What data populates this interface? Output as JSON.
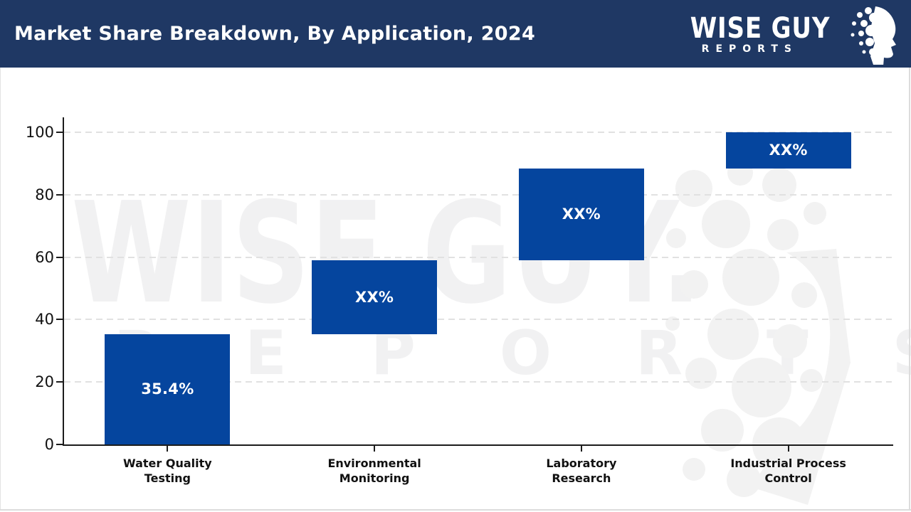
{
  "header": {
    "title": "Market Share Breakdown, By Application, 2024",
    "logo": {
      "line1": "WISE GUY",
      "line2": "REPORTS"
    }
  },
  "watermark": {
    "line1": "WISE GUY.",
    "line2": "R E P O R T S"
  },
  "chart_data": {
    "type": "bar",
    "subtype": "waterfall",
    "title": "Market Share Breakdown, By Application, 2024",
    "categories": [
      "Water Quality\nTesting",
      "Environmental\nMonitoring",
      "Laboratory\nResearch",
      "Industrial Process\nControl"
    ],
    "series": [
      {
        "name": "Market Share",
        "segments": [
          {
            "category": "Water Quality Testing",
            "start": 0,
            "end": 35.4
          },
          {
            "category": "Environmental Monitoring",
            "start": 35.4,
            "end": 59.0
          },
          {
            "category": "Laboratory Research",
            "start": 59.0,
            "end": 88.5
          },
          {
            "category": "Industrial Process Control",
            "start": 88.5,
            "end": 100.0
          }
        ]
      }
    ],
    "bar_labels": [
      "35.4%",
      "XX%",
      "XX%",
      "XX%"
    ],
    "yticks": [
      0,
      20,
      40,
      60,
      80,
      100
    ],
    "ylim": [
      0,
      104.8
    ],
    "xlabel": "",
    "ylabel": "",
    "grid": "horizontal-dashed",
    "legend": "none",
    "colors": {
      "bar": "#05459e",
      "bar_label": "#ffffff",
      "grid": "#e1e1e1",
      "axis": "#1c1c1c",
      "header_bg": "#1f3864",
      "header_text": "#ffffff",
      "watermark": "#f1f1f2"
    }
  }
}
